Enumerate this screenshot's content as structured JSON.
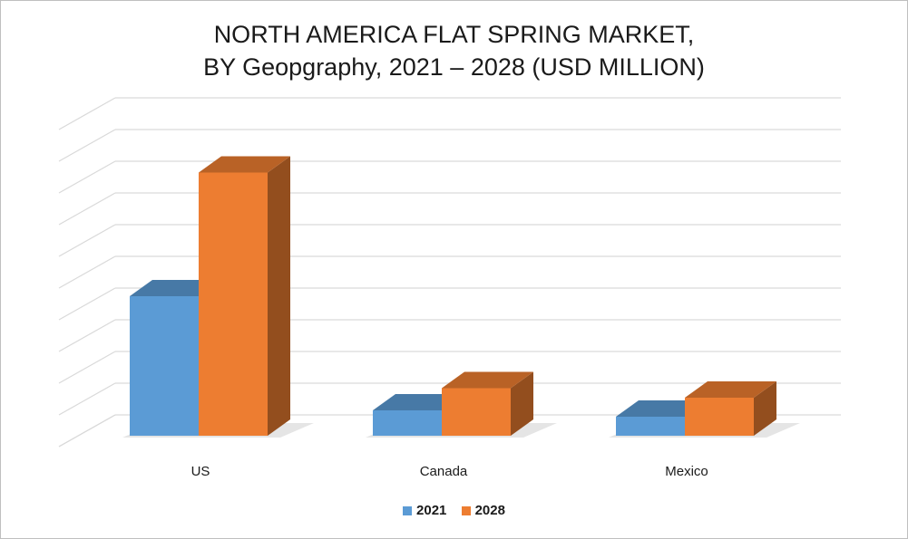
{
  "chart_data": {
    "type": "bar",
    "title_line1": "NORTH AMERICA FLAT SPRING MARKET,",
    "title_line2": "BY Geopgraphy, 2021 – 2028 (USD MILLION)",
    "categories": [
      "US",
      "Canada",
      "Mexico"
    ],
    "series": [
      {
        "name": "2021",
        "values": [
          4.4,
          0.8,
          0.6
        ],
        "color": "#5b9bd5"
      },
      {
        "name": "2028",
        "values": [
          8.3,
          1.5,
          1.2
        ],
        "color": "#ed7d31"
      }
    ],
    "ylim": [
      0,
      10
    ],
    "grid": true,
    "legend_position": "bottom",
    "style": "3d-clustered-column"
  }
}
